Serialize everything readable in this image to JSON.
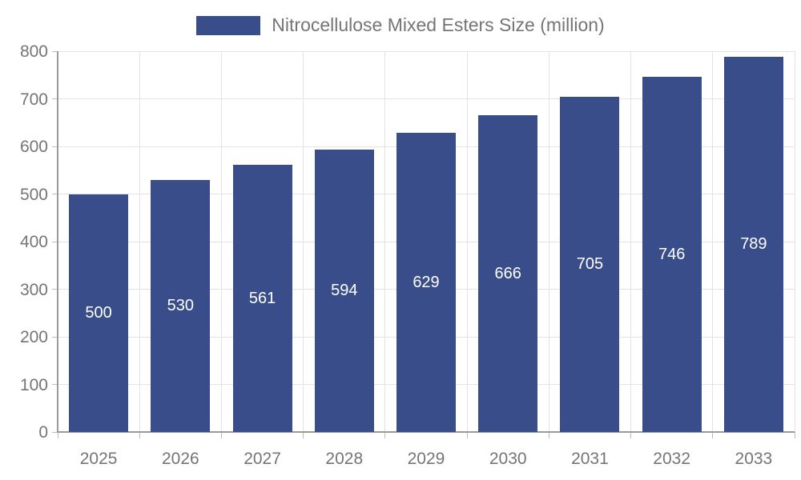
{
  "legend": {
    "label": "Nitrocellulose Mixed Esters Size (million)"
  },
  "chart_data": {
    "type": "bar",
    "title": "",
    "xlabel": "",
    "ylabel": "",
    "categories": [
      "2025",
      "2026",
      "2027",
      "2028",
      "2029",
      "2030",
      "2031",
      "2032",
      "2033"
    ],
    "series": [
      {
        "name": "Nitrocellulose Mixed Esters Size (million)",
        "values": [
          500,
          530,
          561,
          594,
          629,
          666,
          705,
          746,
          789
        ]
      }
    ],
    "value_labels": [
      "500",
      "530",
      "561",
      "594",
      "629",
      "666",
      "705",
      "746",
      "789"
    ],
    "ylim": [
      0,
      800
    ],
    "yticks": [
      0,
      100,
      200,
      300,
      400,
      500,
      600,
      700,
      800
    ],
    "grid": true,
    "legend_position": "top",
    "colors": {
      "bar": "#394D8A",
      "value_label": "#FFFFFF",
      "axis_text": "#757575",
      "gridline": "#E3E3E3",
      "axis_line": "#9A9A9A"
    }
  }
}
